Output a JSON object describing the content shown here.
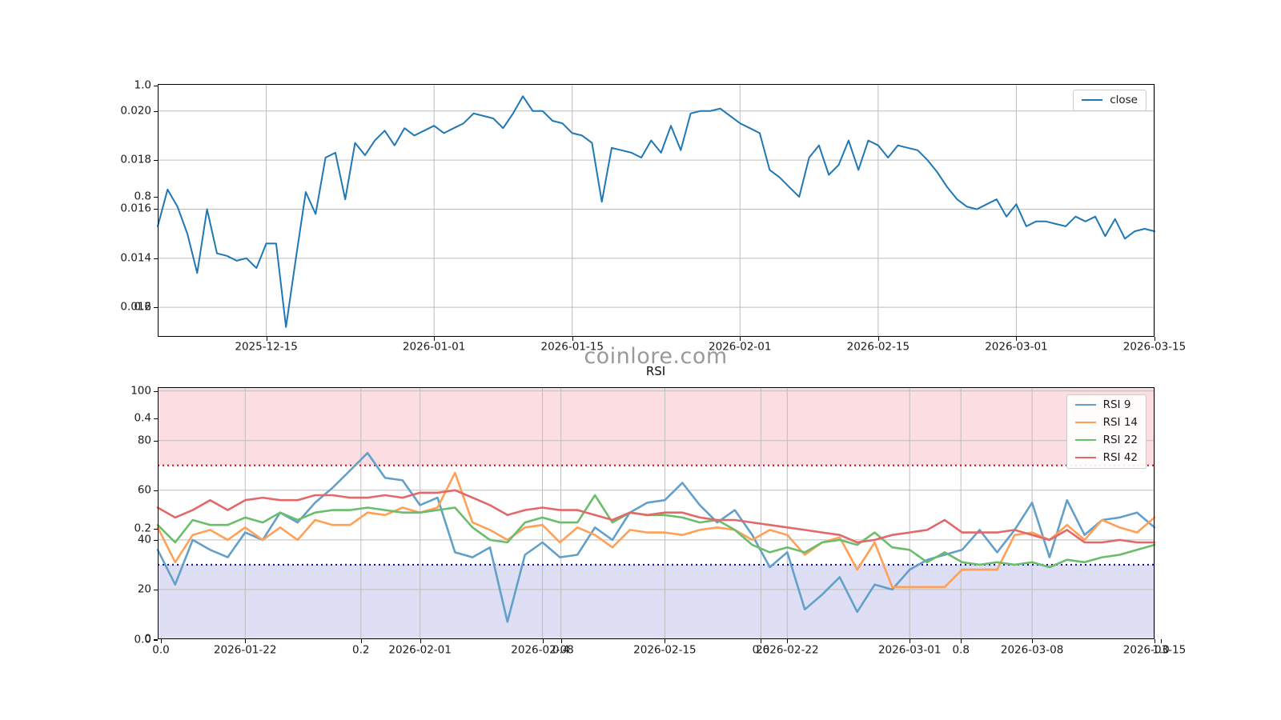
{
  "watermark": "coinlore.com",
  "figure": {
    "background": "#ffffff",
    "grid_color": "#bdbdbd",
    "spine_color": "#000000"
  },
  "overlay_axis": {
    "x_ticks": [
      {
        "label": "0.0",
        "value": 0.0
      },
      {
        "label": "0.2",
        "value": 0.2
      },
      {
        "label": "0.4",
        "value": 0.4
      },
      {
        "label": "0.6",
        "value": 0.6
      },
      {
        "label": "0.8",
        "value": 0.8
      },
      {
        "label": "1.0",
        "value": 1.0
      }
    ],
    "y_ticks": [
      {
        "label": "1.0",
        "value": 1.0
      },
      {
        "label": "0.8",
        "value": 0.8
      },
      {
        "label": "0.6",
        "value": 0.6
      },
      {
        "label": "0.4",
        "value": 0.4
      },
      {
        "label": "0.2",
        "value": 0.2
      },
      {
        "label": "0.0",
        "value": 0.0
      }
    ]
  },
  "chart_data": [
    {
      "type": "line",
      "name": "price",
      "title": "",
      "grid": true,
      "legend_position": "upper right",
      "x_start_date": "2025-12-04",
      "x_tick_labels": [
        "2025-12-15",
        "2026-01-01",
        "2026-01-15",
        "2026-02-01",
        "2026-02-15",
        "2026-03-01",
        "2026-03-15"
      ],
      "x_tick_days": [
        11,
        28,
        42,
        59,
        73,
        87,
        101
      ],
      "xlim": [
        0,
        101
      ],
      "ylim": [
        0.0108,
        0.0211
      ],
      "y_tick_values": [
        0.012,
        0.014,
        0.016,
        0.018,
        0.02
      ],
      "y_tick_labels": [
        "0.012",
        "0.014",
        "0.016",
        "0.018",
        "0.020"
      ],
      "series": [
        {
          "name": "close",
          "color": "#1f77b4",
          "values": [
            0.0153,
            0.0168,
            0.0161,
            0.015,
            0.0134,
            0.016,
            0.0142,
            0.0141,
            0.0139,
            0.014,
            0.0136,
            0.0146,
            0.0146,
            0.0112,
            0.014,
            0.0167,
            0.0158,
            0.0181,
            0.0183,
            0.0164,
            0.0187,
            0.0182,
            0.0188,
            0.0192,
            0.0186,
            0.0193,
            0.019,
            0.0192,
            0.0194,
            0.0191,
            0.0193,
            0.0195,
            0.0199,
            0.0198,
            0.0197,
            0.0193,
            0.0199,
            0.0206,
            0.02,
            0.02,
            0.0196,
            0.0195,
            0.0191,
            0.019,
            0.0187,
            0.0163,
            0.0185,
            0.0184,
            0.0183,
            0.0181,
            0.0188,
            0.0183,
            0.0194,
            0.0184,
            0.0199,
            0.02,
            0.02,
            0.0201,
            0.0198,
            0.0195,
            0.0193,
            0.0191,
            0.0176,
            0.0173,
            0.0169,
            0.0165,
            0.0181,
            0.0186,
            0.0174,
            0.0178,
            0.0188,
            0.0176,
            0.0188,
            0.0186,
            0.0181,
            0.0186,
            0.0185,
            0.0184,
            0.018,
            0.0175,
            0.0169,
            0.0164,
            0.0161,
            0.016,
            0.0162,
            0.0164,
            0.0157,
            0.0162,
            0.0153,
            0.0155,
            0.0155,
            0.0154,
            0.0153,
            0.0157,
            0.0155,
            0.0157,
            0.0149,
            0.0156,
            0.0148,
            0.0151,
            0.0152,
            0.0151
          ]
        }
      ]
    },
    {
      "type": "line",
      "name": "rsi",
      "title": "RSI",
      "grid": true,
      "legend_position": "upper right",
      "x_start_date": "2026-01-17",
      "x_tick_labels": [
        "2026-01-22",
        "2026-02-01",
        "2026-02-08",
        "2026-02-15",
        "2026-02-22",
        "2026-03-01",
        "2026-03-08",
        "2026-03-15"
      ],
      "x_tick_days": [
        5,
        15,
        22,
        29,
        36,
        43,
        50,
        57
      ],
      "xlim": [
        0,
        57
      ],
      "ylim": [
        0,
        101.5
      ],
      "y_tick_values": [
        0,
        20,
        40,
        60,
        80,
        100
      ],
      "y_tick_labels": [
        "0",
        "20",
        "40",
        "60",
        "80",
        "100"
      ],
      "overbought": {
        "level": 70,
        "line_color": "#e60000",
        "band_color": "#fcdde2"
      },
      "oversold": {
        "level": 30,
        "line_color": "#0000bb",
        "band_color": "#dedef5"
      },
      "series": [
        {
          "name": "RSI 9",
          "color": "#62a0ca",
          "values": [
            36,
            22,
            40,
            36,
            33,
            43,
            40,
            51,
            47,
            55,
            61,
            68,
            75,
            65,
            64,
            54,
            57,
            35,
            33,
            37,
            7,
            34,
            39,
            33,
            34,
            45,
            40,
            51,
            55,
            56,
            63,
            54,
            47,
            52,
            42,
            29,
            35,
            12,
            18,
            25,
            11,
            22,
            20,
            28,
            32,
            34,
            36,
            44,
            35,
            44,
            55,
            33,
            56,
            42,
            48,
            49,
            51,
            45
          ]
        },
        {
          "name": "RSI 14",
          "color": "#ffa056",
          "values": [
            45,
            31,
            42,
            44,
            40,
            45,
            40,
            45,
            40,
            48,
            46,
            46,
            51,
            50,
            53,
            51,
            53,
            67,
            47,
            44,
            40,
            45,
            46,
            39,
            45,
            42,
            37,
            44,
            43,
            43,
            42,
            44,
            45,
            44,
            40,
            44,
            42,
            34,
            39,
            41,
            28,
            39,
            21,
            21,
            21,
            21,
            28,
            28,
            28,
            42,
            43,
            40,
            46,
            40,
            48,
            45,
            43,
            49
          ]
        },
        {
          "name": "RSI 22",
          "color": "#6bbd6b",
          "values": [
            46,
            39,
            48,
            46,
            46,
            49,
            47,
            51,
            48,
            51,
            52,
            52,
            53,
            52,
            51,
            51,
            52,
            53,
            45,
            40,
            39,
            47,
            49,
            47,
            47,
            58,
            47,
            51,
            50,
            50,
            49,
            47,
            48,
            44,
            38,
            35,
            37,
            35,
            39,
            40,
            38,
            43,
            37,
            36,
            31,
            35,
            31,
            30,
            31,
            30,
            31,
            29,
            32,
            31,
            33,
            34,
            36,
            38
          ]
        },
        {
          "name": "RSI 42",
          "color": "#e26869",
          "values": [
            53,
            49,
            52,
            56,
            52,
            56,
            57,
            56,
            56,
            58,
            58,
            57,
            57,
            58,
            57,
            59,
            59,
            60,
            57,
            54,
            50,
            52,
            53,
            52,
            52,
            50,
            48,
            51,
            50,
            51,
            51,
            49,
            48,
            48,
            47,
            46,
            45,
            44,
            43,
            42,
            39,
            40,
            42,
            43,
            44,
            48,
            43,
            43,
            43,
            44,
            42,
            40,
            44,
            39,
            39,
            40,
            39,
            39
          ]
        }
      ]
    }
  ]
}
